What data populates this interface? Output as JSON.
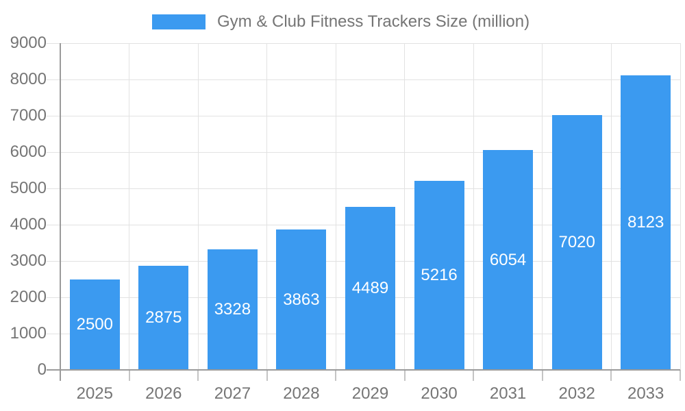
{
  "chart_data": {
    "type": "bar",
    "title": "Gym & Club Fitness Trackers Size (million)",
    "categories": [
      "2025",
      "2026",
      "2027",
      "2028",
      "2029",
      "2030",
      "2031",
      "2032",
      "2033"
    ],
    "series": [
      {
        "name": "Gym & Club Fitness Trackers Size (million)",
        "values": [
          2500,
          2875,
          3328,
          3863,
          4489,
          5216,
          6054,
          7020,
          8123
        ]
      }
    ],
    "value_labels": "inside-center",
    "legend_position": "top-center",
    "grid": true,
    "ylim": [
      0,
      9000
    ],
    "ytick_step": 1000,
    "ytick_labels": [
      "0",
      "1000",
      "2000",
      "3000",
      "4000",
      "5000",
      "6000",
      "7000",
      "8000",
      "9000"
    ],
    "colors": {
      "bar": "#3b9af0",
      "value_label": "#ffffff",
      "axis_label": "#757575",
      "legend_text": "#757575",
      "grid_line": "#e2e2e2",
      "tick": "#c4c4c4",
      "axis_line": "#9a9a9a",
      "background": "#ffffff"
    }
  }
}
